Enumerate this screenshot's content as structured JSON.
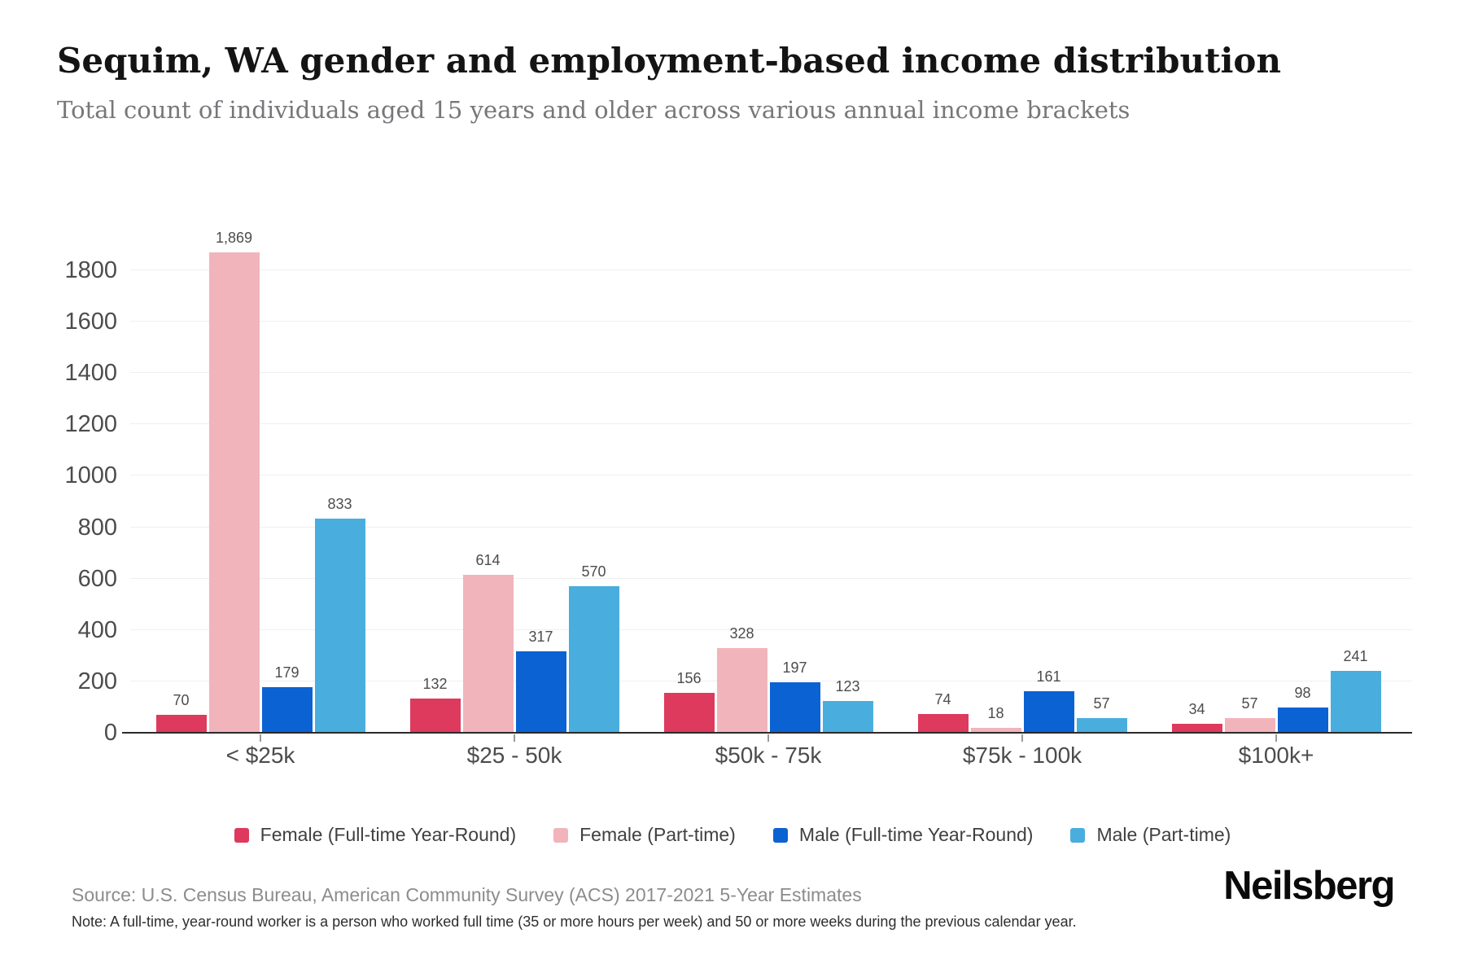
{
  "page": {
    "title": "Sequim, WA gender and employment-based income distribution",
    "subtitle": "Total count of individuals aged 15 years and older across various annual income brackets",
    "source": "Source: U.S. Census Bureau, American Community Survey (ACS) 2017-2021 5-Year Estimates",
    "note": "Note: A full-time, year-round worker is a person who worked full time (35 or more hours per week) and 50 or more weeks during the previous calendar year.",
    "brand": "Neilsberg"
  },
  "chart_data": {
    "type": "bar",
    "title": "Sequim, WA gender and employment-based income distribution",
    "subtitle": "Total count of individuals aged 15 years and older across various annual income brackets",
    "categories": [
      "< $25k",
      "$25 - 50k",
      "$50k - 75k",
      "$75k - 100k",
      "$100k+"
    ],
    "series": [
      {
        "name": "Female (Full-time Year-Round)",
        "color": "#dd3a5e",
        "values": [
          70,
          132,
          156,
          74,
          34
        ]
      },
      {
        "name": "Female (Part-time)",
        "color": "#f2b4bb",
        "values": [
          1869,
          614,
          328,
          18,
          57
        ]
      },
      {
        "name": "Male (Full-time Year-Round)",
        "color": "#0b62d2",
        "values": [
          179,
          317,
          197,
          161,
          98
        ]
      },
      {
        "name": "Male (Part-time)",
        "color": "#49aede",
        "values": [
          833,
          570,
          123,
          57,
          241
        ]
      }
    ],
    "xlabel": "",
    "ylabel": "",
    "ylim": [
      0,
      1800
    ],
    "ytick_step": 200,
    "grid": true,
    "legend_position": "bottom",
    "colors": {
      "gridline": "#efefef",
      "axis_line": "#2b2b2b",
      "tick_label": "#4c4c4c",
      "value_label": "#4c4c4c"
    }
  }
}
